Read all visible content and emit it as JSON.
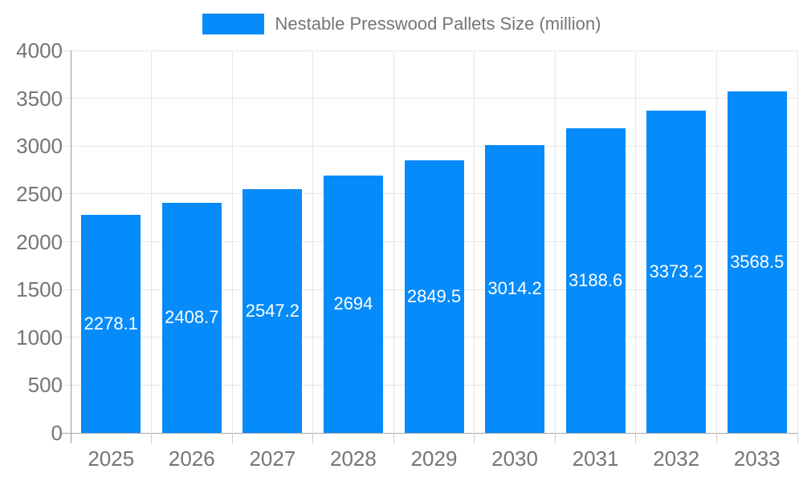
{
  "chart_data": {
    "type": "bar",
    "title": "Nestable Presswood Pallets Size (million)",
    "legend": {
      "label": "Nestable Presswood Pallets Size (million)",
      "position": "top"
    },
    "categories": [
      "2025",
      "2026",
      "2027",
      "2028",
      "2029",
      "2030",
      "2031",
      "2032",
      "2033"
    ],
    "series": [
      {
        "name": "Nestable Presswood Pallets Size (million)",
        "values": [
          2278.1,
          2408.7,
          2547.2,
          2694,
          2849.5,
          3014.2,
          3188.6,
          3373.2,
          3568.5
        ],
        "value_labels": [
          "2278.1",
          "2408.7",
          "2547.2",
          "2694",
          "2849.5",
          "3014.2",
          "3188.6",
          "3373.2",
          "3568.5"
        ]
      }
    ],
    "xlabel": "",
    "ylabel": "",
    "ylim": [
      0,
      4000
    ],
    "ytick_step": 500,
    "yticks": [
      "0",
      "500",
      "1000",
      "1500",
      "2000",
      "2500",
      "3000",
      "3500",
      "4000"
    ],
    "grid": "horizontal and vertical gridlines on",
    "value_label_position": "centered inside bar, white",
    "colors": {
      "bar": "#068bfa",
      "axis_text": "#757575",
      "gridline": "#e6e6e6",
      "axis_line": "#a0a0a0",
      "bar_label": "#ffffff",
      "background": "#ffffff"
    }
  }
}
